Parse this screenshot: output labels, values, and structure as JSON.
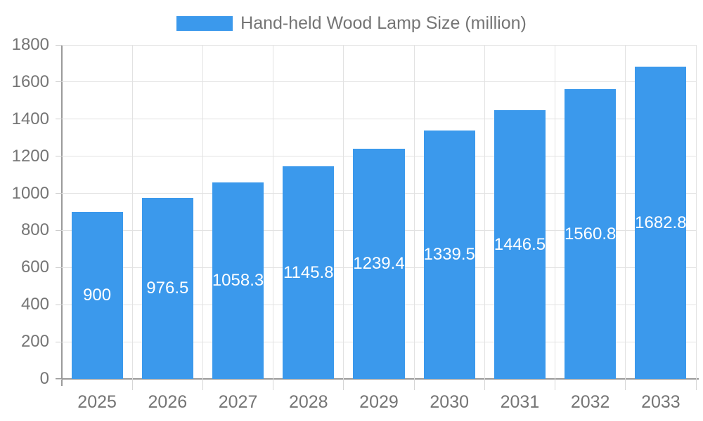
{
  "colors": {
    "bar": "#3b99ec",
    "grid": "#e2e2e2",
    "axis": "#9a9a9a",
    "x_tick": "#d6d6d6",
    "y_tick": "#cccccc",
    "axis_text": "#757575",
    "legend_text": "#757575",
    "value_text": "#ffffff",
    "background": "#ffffff"
  },
  "chart_data": {
    "type": "bar",
    "title": "Hand-held Wood Lamp Size (million)",
    "categories": [
      "2025",
      "2026",
      "2027",
      "2028",
      "2029",
      "2030",
      "2031",
      "2032",
      "2033"
    ],
    "series": [
      {
        "name": "Hand-held Wood Lamp Size (million)",
        "color": "#3b99ec",
        "values": [
          900,
          976.5,
          1058.3,
          1145.8,
          1239.4,
          1339.5,
          1446.5,
          1560.8,
          1682.8
        ]
      }
    ],
    "value_labels": [
      "900",
      "976.5",
      "1058.3",
      "1145.8",
      "1239.4",
      "1339.5",
      "1446.5",
      "1560.8",
      "1682.8"
    ],
    "xlabel": "",
    "ylabel": "",
    "ylim": [
      0,
      1800
    ],
    "yticks": [
      0,
      200,
      400,
      600,
      800,
      1000,
      1200,
      1400,
      1600,
      1800
    ],
    "grid": true,
    "legend_position": "top",
    "value_label_position": "inside-center"
  }
}
